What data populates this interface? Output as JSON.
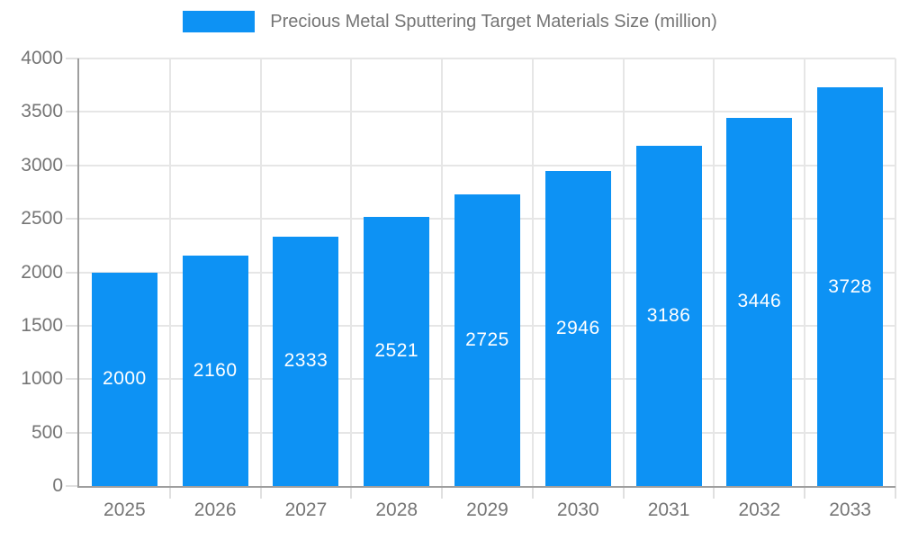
{
  "chart_data": {
    "type": "bar",
    "title": "Precious Metal Sputtering Target Materials Size (million)",
    "categories": [
      "2025",
      "2026",
      "2027",
      "2028",
      "2029",
      "2030",
      "2031",
      "2032",
      "2033"
    ],
    "values": [
      2000,
      2160,
      2333,
      2521,
      2725,
      2946,
      3186,
      3446,
      3728
    ],
    "bar_value_labels": [
      "2000",
      "2160",
      "2333",
      "2521",
      "2725",
      "2946",
      "3186",
      "3446",
      "3728"
    ],
    "ylim": [
      0,
      4000
    ],
    "ytick_step": 500,
    "ytick_labels": [
      "0",
      "500",
      "1000",
      "1500",
      "2000",
      "2500",
      "3000",
      "3500",
      "4000"
    ],
    "grid": true,
    "legend_position": "top",
    "colors": {
      "bar": "#0D92F4",
      "bar_label": "#ffffff",
      "grid": "#e6e6e6",
      "tick": "#e0e0e0",
      "axis_line": "#9e9e9e",
      "axis_text": "#757575"
    }
  }
}
